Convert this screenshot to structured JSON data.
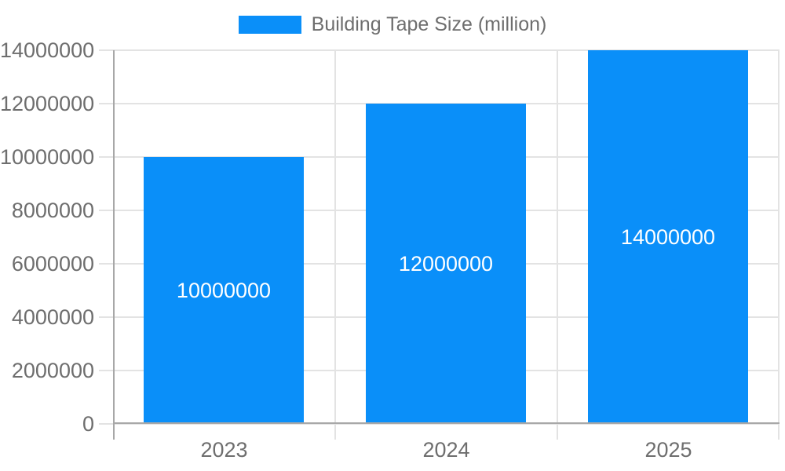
{
  "chart_data": {
    "type": "bar",
    "title": "",
    "legend": {
      "label": "Building Tape Size (million)",
      "position": "top"
    },
    "categories": [
      "2023",
      "2024",
      "2025"
    ],
    "series": [
      {
        "name": "Building Tape Size (million)",
        "values": [
          10000000,
          12000000,
          14000000
        ]
      }
    ],
    "value_labels": [
      "10000000",
      "12000000",
      "14000000"
    ],
    "y_ticks": [
      14000000,
      12000000,
      10000000,
      8000000,
      6000000,
      4000000,
      2000000,
      0
    ],
    "y_tick_labels": [
      "14000000",
      "12000000",
      "10000000",
      "8000000",
      "6000000",
      "4000000",
      "2000000",
      "0"
    ],
    "ylim": [
      0,
      14000000
    ],
    "xlabel": "",
    "ylabel": "",
    "grid": "horizontal gridlines + category boundary lines",
    "colors": {
      "bar": "#0a8ff9",
      "grid": "#e3e3e3",
      "axis": "#a8a8a8",
      "label_text": "#6e6e6e",
      "bar_label_text": "#ffffff",
      "background": "#ffffff"
    }
  }
}
